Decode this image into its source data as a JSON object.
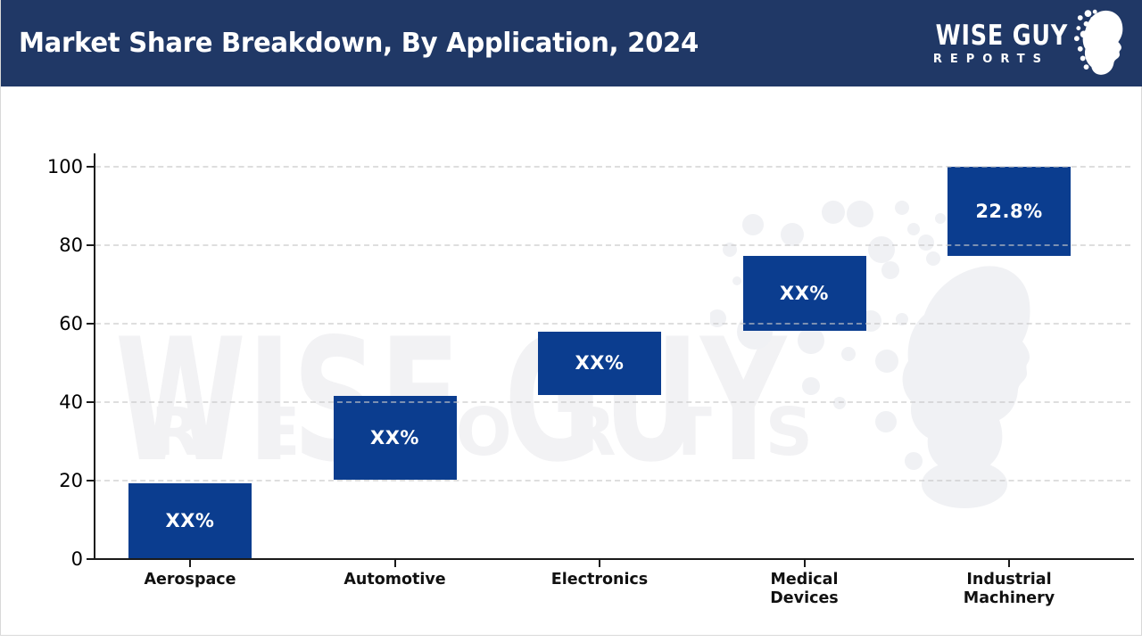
{
  "header": {
    "title": "Market Share Breakdown, By Application, 2024",
    "logo": {
      "line1": "WISE GUY",
      "line2": "REPORTS",
      "face_icon": "head-profile-dots-icon"
    },
    "background_color": "#203866"
  },
  "watermark": {
    "line1": "WISE GUY",
    "line2": "REPORTS",
    "face_icon": "head-profile-dots-watermark"
  },
  "colors": {
    "bar": "#0b3d8f",
    "header_bg": "#203866",
    "gridline": "#cccccc",
    "watermark": "#f2f2f4",
    "axis": "#1a1a1a"
  },
  "chart_data": {
    "type": "bar",
    "subtype": "waterfall",
    "title": "Market Share Breakdown, By Application, 2024",
    "xlabel": "",
    "ylabel": "",
    "ylim": [
      0,
      103
    ],
    "yticks": [
      0,
      20,
      40,
      60,
      80,
      100
    ],
    "grid": "dashed-horizontal",
    "legend": "none",
    "categories": [
      "Aerospace",
      "Automotive",
      "Electronics",
      "Medical Devices",
      "Industrial Machinery"
    ],
    "segments": [
      {
        "category": "Aerospace",
        "start": 0,
        "end": 19.4,
        "value": 19.4,
        "label": "XX%"
      },
      {
        "category": "Automotive",
        "start": 20.2,
        "end": 41.6,
        "value": 21.4,
        "label": "XX%"
      },
      {
        "category": "Electronics",
        "start": 41.8,
        "end": 58.0,
        "value": 16.2,
        "label": "XX%"
      },
      {
        "category": "Medical Devices",
        "start": 58.2,
        "end": 77.3,
        "value": 19.1,
        "label": "XX%"
      },
      {
        "category": "Industrial Machinery",
        "start": 77.2,
        "end": 100,
        "value": 22.8,
        "label": "22.8%"
      }
    ]
  }
}
